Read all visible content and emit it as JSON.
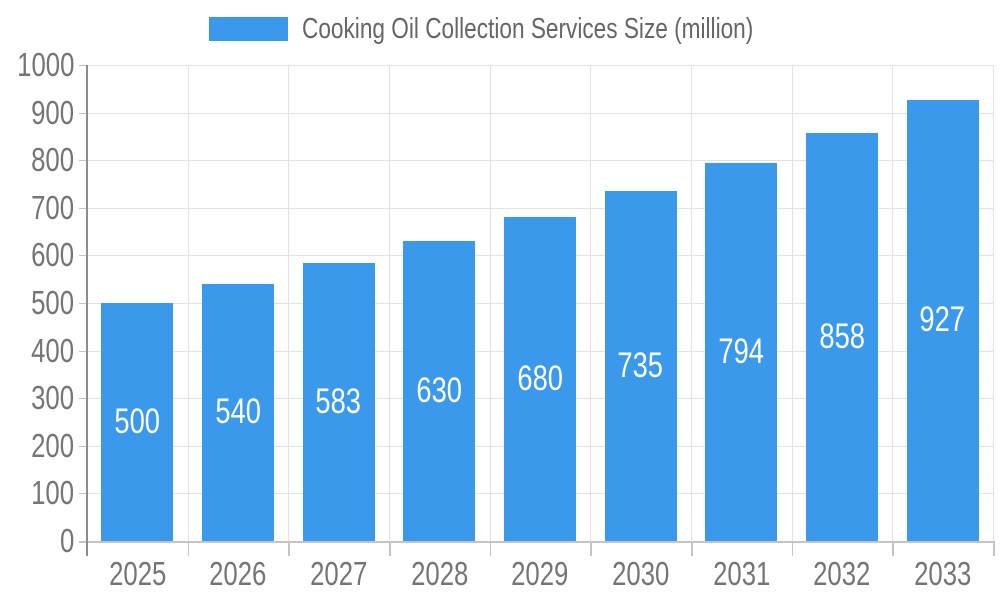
{
  "legend": {
    "label": "Cooking Oil Collection Services Size (million)"
  },
  "chart_data": {
    "type": "bar",
    "title": "Cooking Oil Collection Services Size (million)",
    "categories": [
      "2025",
      "2026",
      "2027",
      "2028",
      "2029",
      "2030",
      "2031",
      "2032",
      "2033"
    ],
    "values": [
      500,
      540,
      583,
      630,
      680,
      735,
      794,
      858,
      927
    ],
    "xlabel": "",
    "ylabel": "",
    "ylim": [
      0,
      1000
    ],
    "ytick_step": 100,
    "ytick_labels": [
      "0",
      "100",
      "200",
      "300",
      "400",
      "500",
      "600",
      "700",
      "800",
      "900",
      "1000"
    ],
    "grid": true,
    "legend_position": "top",
    "value_label_position": "inside-center",
    "colors": {
      "bar": "#3B99EC",
      "value_label": "#FFFFFF",
      "axis_text": "#757575",
      "legend_text": "#666666",
      "gridline": "#E2E2E2",
      "y_axis_line": "#8C8C8C",
      "x_axis_line": "#C4C4C4",
      "tick": "#C4C4C4",
      "background": "#FFFFFF"
    }
  }
}
